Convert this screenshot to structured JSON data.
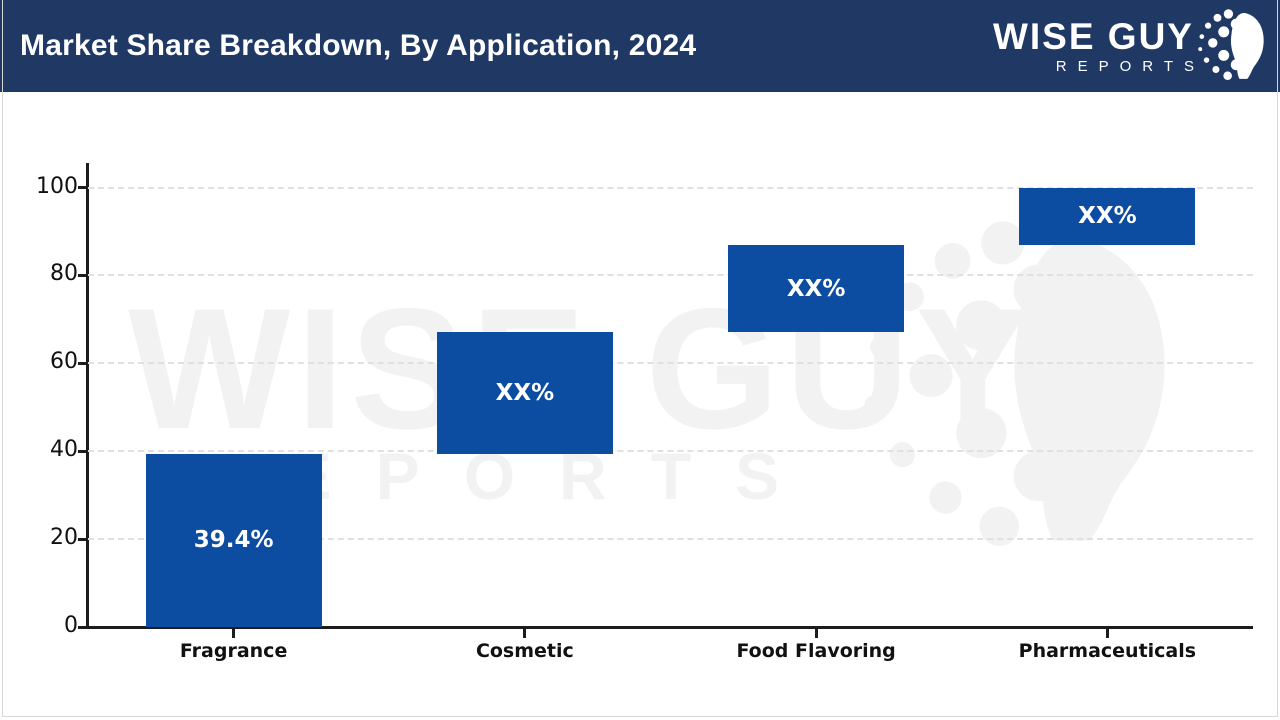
{
  "header": {
    "title": "Market Share Breakdown, By Application, 2024",
    "logo_line1": "WISE GUY",
    "logo_line2": "REPORTS"
  },
  "watermark": {
    "line1": "WISE GUY",
    "line2": "REPORTS"
  },
  "colors": {
    "header_bg": "#1f3864",
    "bar": "#0d4da1",
    "grid": "#e0e0e0",
    "axis": "#1c1c1c",
    "title_text": "#ffffff",
    "bar_label_text": "#ffffff",
    "watermark": "#f2f2f2"
  },
  "chart_data": {
    "type": "bar",
    "subtype": "floating-waterfall",
    "title": "Market Share Breakdown, By Application, 2024",
    "categories": [
      "Fragrance",
      "Cosmetic",
      "Food Flavoring",
      "Pharmaceuticals"
    ],
    "bars": [
      {
        "category": "Fragrance",
        "start": 0,
        "end": 39.4,
        "label": "39.4%"
      },
      {
        "category": "Cosmetic",
        "start": 39.4,
        "end": 67.1,
        "label": "XX%"
      },
      {
        "category": "Food Flavoring",
        "start": 67.1,
        "end": 86.9,
        "label": "XX%"
      },
      {
        "category": "Pharmaceuticals",
        "start": 86.9,
        "end": 100,
        "label": "XX%"
      }
    ],
    "yticks": [
      0,
      20,
      40,
      60,
      80,
      100
    ],
    "ylim": [
      0,
      105
    ],
    "xlabel": "",
    "ylabel": "",
    "grid": "horizontal-dashed",
    "legend": false
  }
}
